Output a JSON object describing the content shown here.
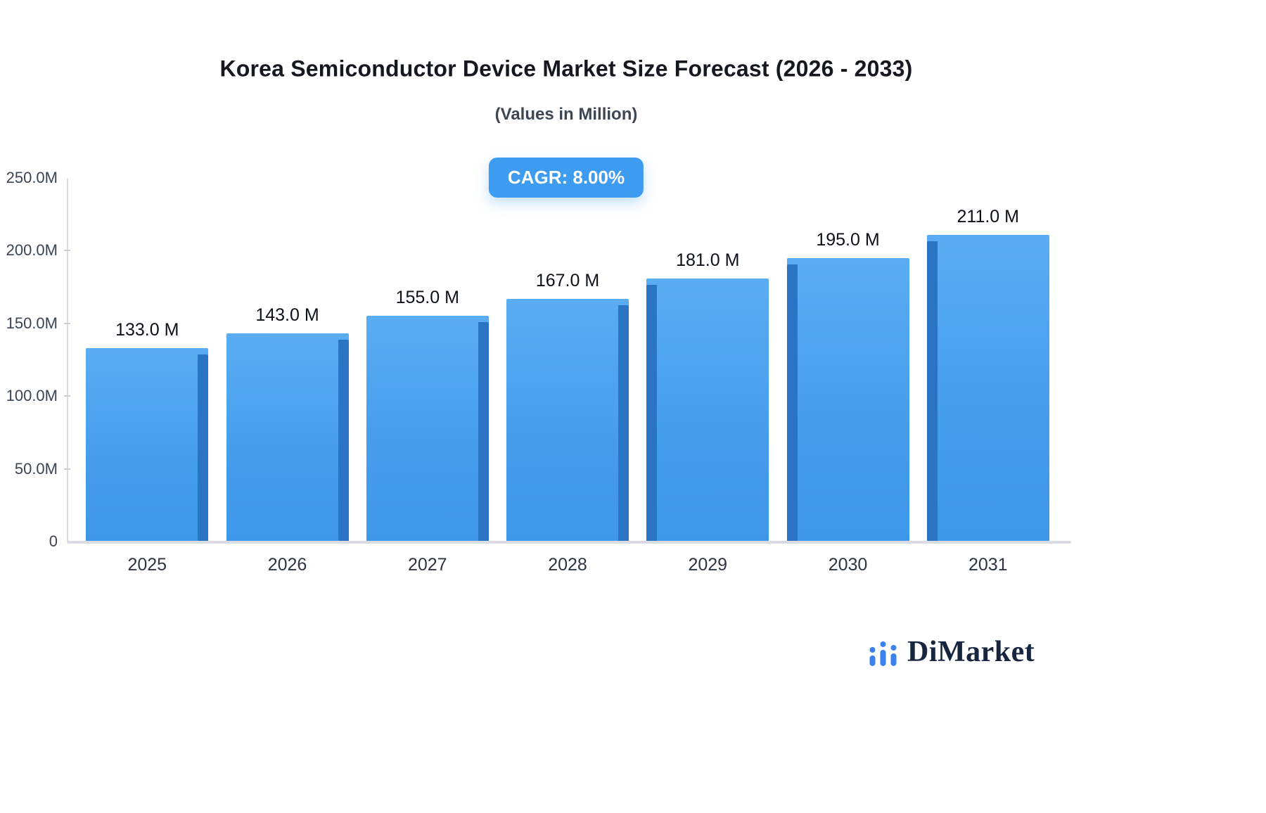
{
  "header": {
    "title": "Korea Semiconductor Device Market Size Forecast (2026 - 2033)",
    "subtitle": "(Values in Million)",
    "cagr_label": "CAGR: 8.00%"
  },
  "branding": {
    "name": "DiMarket",
    "icon": "bar-chart-logo-icon",
    "icon_color": "#3b82ec",
    "text_color": "#17253f"
  },
  "colors": {
    "bar_main": "#459ceb",
    "bar_side": "#2b74c4",
    "badge_bg": "#3d9bf0",
    "axis_line": "#d9dde3",
    "label_text": "#0c1118"
  },
  "chart_data": {
    "type": "bar",
    "title": "Korea Semiconductor Device Market Size Forecast (2026 - 2033)",
    "subtitle": "(Values in Million)",
    "categories": [
      "2025",
      "2026",
      "2027",
      "2028",
      "2029",
      "2030",
      "2031"
    ],
    "values": [
      133,
      143,
      155,
      167,
      181,
      195,
      211
    ],
    "bar_labels": [
      "133.0 M",
      "143.0 M",
      "155.0 M",
      "167.0 M",
      "181.0 M",
      "195.0 M",
      "211.0 M"
    ],
    "unit": "Million",
    "xlabel": "",
    "ylabel": "",
    "ylim": [
      0,
      250
    ],
    "y_ticks": [
      "0",
      "50.0M",
      "100.0M",
      "150.0M",
      "200.0M",
      "250.0M"
    ],
    "y_tick_values": [
      0,
      50,
      100,
      150,
      200,
      250
    ],
    "grid": false,
    "legend": false,
    "annotation": "CAGR: 8.00%"
  }
}
